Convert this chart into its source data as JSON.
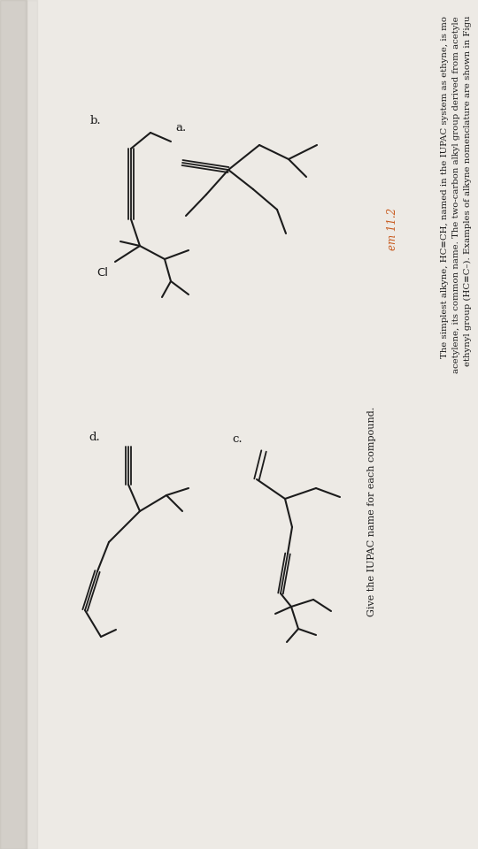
{
  "bg_color": "#edeae5",
  "page_color": "#f3f1ee",
  "shadow_color": "#b5b0a8",
  "line_color": "#1c1c1c",
  "text_color": "#1c1c1c",
  "orange_color": "#c85a1e",
  "title_text": "The simplest alkyne, HC≡CH, named in the IUPAC system as ethyne, is mo\nacetylene, its common name. The two-carbon alkyl group derived from acetyle\nethynyl group (HC≡C–). Examples of alkyne nomenclature are shown in Figu",
  "prob_label": "em 11.2",
  "prob_text": "Give the IUPAC name for each compound.",
  "label_a": "a.",
  "label_b": "b.",
  "label_c": "c.",
  "label_d": "d.",
  "cl_label": "Cl"
}
